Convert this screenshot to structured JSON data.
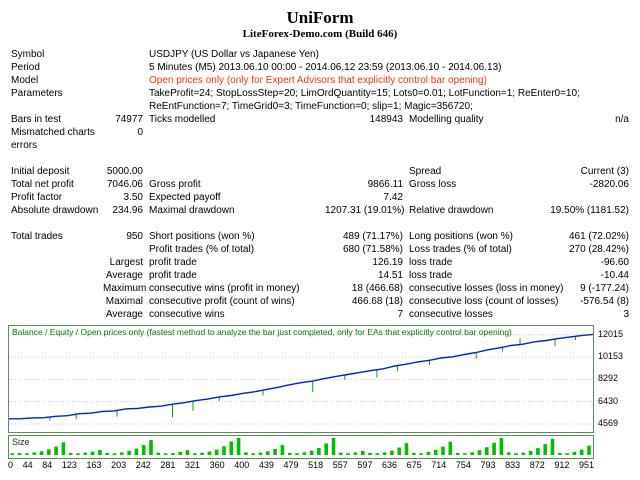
{
  "header": {
    "title": "UniForm",
    "subtitle": "LiteForex-Demo.com (Build 646)"
  },
  "colors": {
    "warning": "#e8380d",
    "legend": "#007800",
    "grid": "#c6c6c6",
    "frame": "#5c8a5c"
  },
  "stats": {
    "symbol": {
      "label": "Symbol",
      "value": "USDJPY (US Dollar vs Japanese Yen)"
    },
    "period": {
      "label": "Period",
      "value": "5 Minutes (M5) 2013.06.10 00:00 - 2014.06.12 23:59 (2013.06.10 - 2014.06.13)"
    },
    "model": {
      "label": "Model",
      "value": "Open prices only (only for Expert Advisors that explicitly control bar opening)"
    },
    "parameters": {
      "label": "Parameters",
      "value": "TakeProfit=24; StopLossStep=20; LimOrdQuantity=15; Lots0=0.01; LotFunction=1; ReEnter0=10; ReEntFunction=7; TimeGrid0=3; TimeFunction=0; slip=1; Magic=356720;"
    },
    "bars_in_test": {
      "label": "Bars in test",
      "value": "74977"
    },
    "ticks_modelled": {
      "label": "Ticks modelled",
      "value": "148943"
    },
    "modelling_quality": {
      "label": "Modelling quality",
      "value": "n/a"
    },
    "mismatched": {
      "label": "Mismatched charts errors",
      "value": "0"
    },
    "initial_deposit": {
      "label": "Initial deposit",
      "value": "5000.00"
    },
    "spread": {
      "label": "Spread",
      "value": "Current (3)"
    },
    "total_net_profit": {
      "label": "Total net profit",
      "value": "7046.06"
    },
    "gross_profit": {
      "label": "Gross profit",
      "value": "9866.11"
    },
    "gross_loss": {
      "label": "Gross loss",
      "value": "-2820.06"
    },
    "profit_factor": {
      "label": "Profit factor",
      "value": "3.50"
    },
    "expected_payoff": {
      "label": "Expected payoff",
      "value": "7.42"
    },
    "absolute_drawdown": {
      "label": "Absolute drawdown",
      "value": "234.96"
    },
    "maximal_drawdown": {
      "label": "Maximal drawdown",
      "value": "1207.31 (19.01%)"
    },
    "relative_drawdown": {
      "label": "Relative drawdown",
      "value": "19.50% (1181.52)"
    },
    "total_trades": {
      "label": "Total trades",
      "value": "950"
    },
    "short_positions": {
      "label": "Short positions (won %)",
      "value": "489 (71.17%)"
    },
    "long_positions": {
      "label": "Long positions (won %)",
      "value": "461 (72.02%)"
    },
    "profit_trades": {
      "label": "Profit trades (% of total)",
      "value": "680 (71.58%)"
    },
    "loss_trades": {
      "label": "Loss trades (% of total)",
      "value": "270 (28.42%)"
    },
    "largest": {
      "label": "Largest",
      "profit_label": "profit trade",
      "profit_value": "126.19",
      "loss_label": "loss trade",
      "loss_value": "-96.60"
    },
    "average_trade": {
      "label": "Average",
      "profit_label": "profit trade",
      "profit_value": "14.51",
      "loss_label": "loss trade",
      "loss_value": "-10.44"
    },
    "maximum_consecutive": {
      "label": "Maximum",
      "win_label": "consecutive wins (profit in money)",
      "win_value": "18 (466.68)",
      "loss_label": "consecutive losses (loss in money)",
      "loss_value": "9 (-177.24)"
    },
    "maximal_consecutive": {
      "label": "Maximal",
      "win_label": "consecutive profit (count of wins)",
      "win_value": "466.68 (18)",
      "loss_label": "consecutive loss (count of losses)",
      "loss_value": "-576.54 (8)"
    },
    "average_consecutive": {
      "label": "Average",
      "win_label": "consecutive wins",
      "win_value": "7",
      "loss_label": "consecutive losses",
      "loss_value": "3"
    }
  },
  "chart_data": {
    "type": "line",
    "title": "Balance / Equity / Open prices only (fastest method to analyze the bar just completed, only for EAs that explicitly control bar opening)",
    "value_range": [
      3900,
      12750
    ],
    "y_ticks": [
      {
        "label": "12015",
        "value": 12015
      },
      {
        "label": "10153",
        "value": 10153
      },
      {
        "label": "8292",
        "value": 8292
      },
      {
        "label": "6430",
        "value": 6430
      },
      {
        "label": "4569",
        "value": 4569
      }
    ],
    "x_tick_labels": [
      "0",
      "44",
      "84",
      "123",
      "163",
      "203",
      "242",
      "281",
      "321",
      "360",
      "400",
      "439",
      "479",
      "518",
      "557",
      "597",
      "636",
      "675",
      "714",
      "754",
      "793",
      "833",
      "872",
      "912",
      "951"
    ],
    "series": [
      {
        "name": "Balance",
        "color": "#0020c8",
        "points": [
          [
            0,
            5000
          ],
          [
            0.02,
            5010
          ],
          [
            0.04,
            5080
          ],
          [
            0.06,
            5090
          ],
          [
            0.08,
            5210
          ],
          [
            0.1,
            5260
          ],
          [
            0.12,
            5430
          ],
          [
            0.14,
            5470
          ],
          [
            0.16,
            5620
          ],
          [
            0.18,
            5660
          ],
          [
            0.2,
            5830
          ],
          [
            0.22,
            5870
          ],
          [
            0.24,
            5990
          ],
          [
            0.26,
            6050
          ],
          [
            0.28,
            6220
          ],
          [
            0.3,
            6350
          ],
          [
            0.32,
            6520
          ],
          [
            0.34,
            6650
          ],
          [
            0.36,
            6830
          ],
          [
            0.38,
            6950
          ],
          [
            0.4,
            7120
          ],
          [
            0.42,
            7260
          ],
          [
            0.44,
            7440
          ],
          [
            0.46,
            7620
          ],
          [
            0.48,
            7840
          ],
          [
            0.5,
            8020
          ],
          [
            0.52,
            8150
          ],
          [
            0.54,
            8360
          ],
          [
            0.56,
            8540
          ],
          [
            0.58,
            8700
          ],
          [
            0.6,
            8860
          ],
          [
            0.62,
            9030
          ],
          [
            0.64,
            9170
          ],
          [
            0.66,
            9400
          ],
          [
            0.68,
            9560
          ],
          [
            0.7,
            9750
          ],
          [
            0.72,
            9890
          ],
          [
            0.74,
            10080
          ],
          [
            0.76,
            10180
          ],
          [
            0.78,
            10370
          ],
          [
            0.8,
            10540
          ],
          [
            0.82,
            10760
          ],
          [
            0.84,
            10930
          ],
          [
            0.86,
            11120
          ],
          [
            0.88,
            11230
          ],
          [
            0.9,
            11430
          ],
          [
            0.92,
            11540
          ],
          [
            0.94,
            11700
          ],
          [
            0.96,
            11820
          ],
          [
            0.98,
            11950
          ],
          [
            1.0,
            12046
          ]
        ]
      },
      {
        "name": "Equity",
        "color": "#00a800",
        "spikes": [
          [
            0.07,
            -280
          ],
          [
            0.115,
            -420
          ],
          [
            0.185,
            -520
          ],
          [
            0.28,
            -1100
          ],
          [
            0.315,
            -800
          ],
          [
            0.36,
            -350
          ],
          [
            0.435,
            -450
          ],
          [
            0.52,
            -900
          ],
          [
            0.575,
            -400
          ],
          [
            0.63,
            -650
          ],
          [
            0.665,
            -480
          ],
          [
            0.72,
            -380
          ],
          [
            0.8,
            -500
          ],
          [
            0.845,
            -320
          ],
          [
            0.875,
            520
          ],
          [
            0.935,
            -600
          ],
          [
            0.97,
            -300
          ]
        ]
      }
    ],
    "size_panel": {
      "label": "Size",
      "color": "#00bf00",
      "bars": [
        0.1,
        0.12,
        0.1,
        0.15,
        0.22,
        0.33,
        0.5,
        0.75,
        0.12,
        0.1,
        0.14,
        0.2,
        0.3,
        0.12,
        0.1,
        0.15,
        0.24,
        0.38,
        0.58,
        0.88,
        0.14,
        0.1,
        0.12,
        0.18,
        0.28,
        0.1,
        0.14,
        0.2,
        0.32,
        0.52,
        0.8,
        1.0,
        0.16,
        0.1,
        0.14,
        0.22,
        0.36,
        0.58,
        0.12,
        0.1,
        0.16,
        0.26,
        0.42,
        0.68,
        1.0,
        0.14,
        0.1,
        0.15,
        0.24,
        0.12,
        0.1,
        0.16,
        0.26,
        0.44,
        0.7,
        0.12,
        0.1,
        0.18,
        0.3,
        0.5,
        0.78,
        0.12,
        0.1,
        0.16,
        0.28,
        0.46,
        0.72,
        1.0,
        0.16,
        0.1,
        0.14,
        0.24,
        0.4,
        0.64,
        0.95,
        0.12,
        0.1,
        0.18,
        0.32,
        0.55
      ]
    }
  }
}
